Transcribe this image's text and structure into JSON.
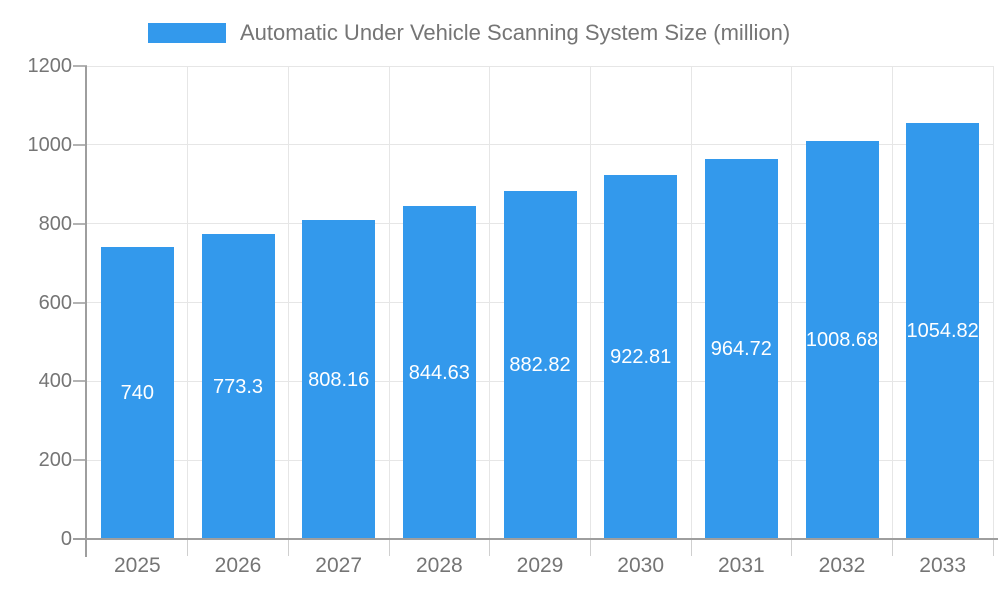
{
  "page": {
    "background": "#ffffff"
  },
  "chart_data": {
    "type": "bar",
    "title": "Automatic Under Vehicle Scanning System Size (million)",
    "categories": [
      "2025",
      "2026",
      "2027",
      "2028",
      "2029",
      "2030",
      "2031",
      "2032",
      "2033"
    ],
    "values": [
      740,
      773.3,
      808.16,
      844.63,
      882.82,
      922.81,
      964.72,
      1008.68,
      1054.82
    ],
    "value_labels": [
      "740",
      "773.3",
      "808.16",
      "844.63",
      "882.82",
      "922.81",
      "964.72",
      "1008.68",
      "1054.82"
    ],
    "xlabel": "",
    "ylabel": "",
    "ylim": [
      0,
      1200
    ],
    "yticks": [
      0,
      200,
      400,
      600,
      800,
      1000,
      1200
    ],
    "grid": true,
    "legend_position": "top",
    "style": {
      "bar_color": "#3399EC",
      "grid_color": "#e6e6e6",
      "axis_color": "#9e9e9e",
      "tick_color": "#b3b3b3",
      "minor_tick_color": "#cfcfcf",
      "label_color": "#757575",
      "value_label_color": "#ffffff",
      "background": "#ffffff"
    }
  }
}
